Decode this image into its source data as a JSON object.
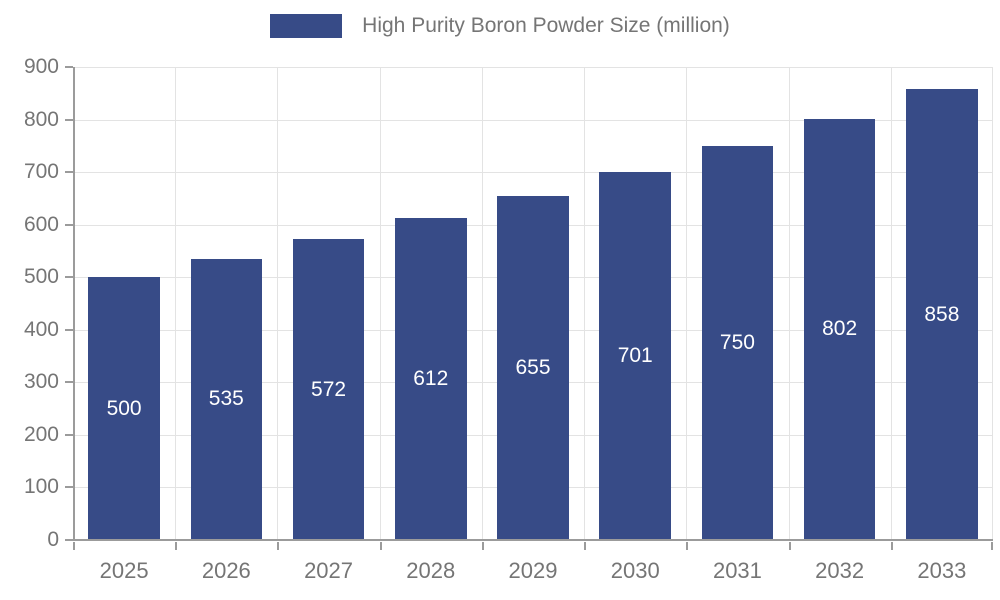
{
  "legend": {
    "label": "High Purity Boron Powder Size (million)"
  },
  "colors": {
    "bar": "#374B87",
    "grid": "#e3e3e3",
    "axis": "#9b9b9b",
    "tick_text": "#757575",
    "legend_text": "#757575",
    "value_label": "#ffffff",
    "background": "#ffffff"
  },
  "chart_data": {
    "type": "bar",
    "title": "High Purity Boron Powder Size (million)",
    "categories": [
      "2025",
      "2026",
      "2027",
      "2028",
      "2029",
      "2030",
      "2031",
      "2032",
      "2033"
    ],
    "values": [
      500,
      535,
      572,
      612,
      655,
      701,
      750,
      802,
      858
    ],
    "xlabel": "",
    "ylabel": "",
    "ylim": [
      0,
      900
    ],
    "ytick_step": 100,
    "ytick_labels": [
      "0",
      "100",
      "200",
      "300",
      "400",
      "500",
      "600",
      "700",
      "800",
      "900"
    ],
    "grid": true,
    "legend_position": "top-center",
    "bar_value_labels": true,
    "bar_width_fraction": 0.7
  }
}
